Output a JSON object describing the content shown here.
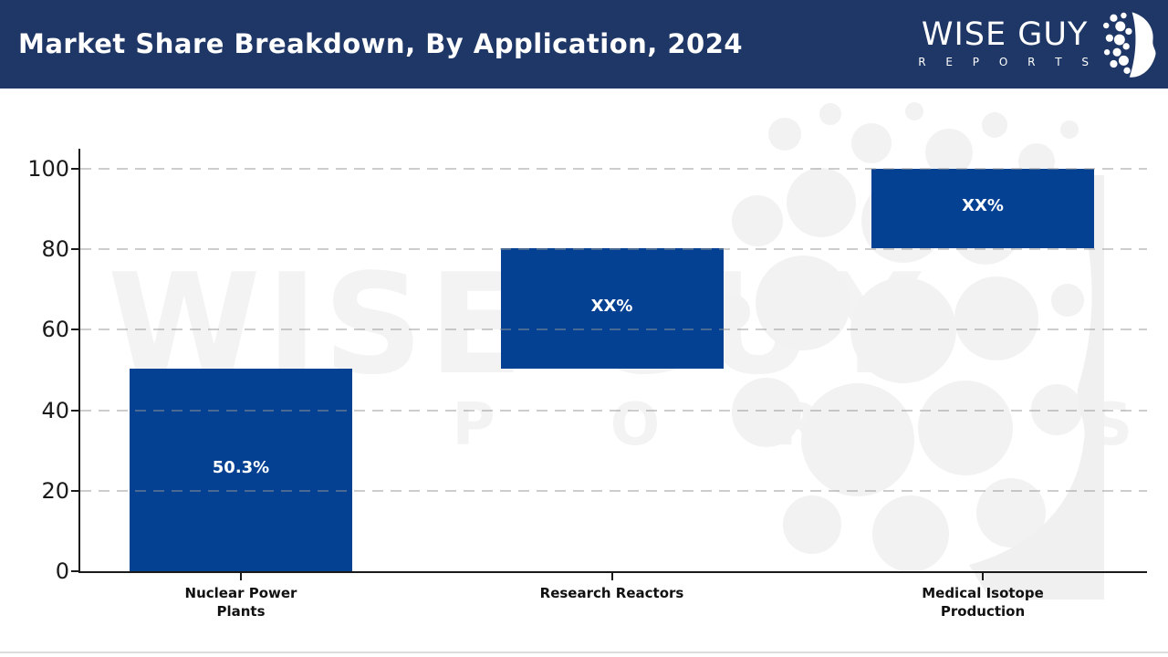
{
  "colors": {
    "header_bg": "#1f3766",
    "bar": "#054193",
    "bar_label": "#ffffff",
    "axis": "#1a1a1a",
    "gridline": "#c9c9c9",
    "watermark": "#f3f3f3",
    "title_text": "#ffffff",
    "footer_line": "#dcdcdc"
  },
  "header": {
    "title": "Market Share Breakdown, By Application, 2024"
  },
  "logo": {
    "wordmark": "WISE GUY",
    "subtitle": "R E P O R T S",
    "head_icon": "dotted-head-profile"
  },
  "watermark": {
    "line1": "WISE GUY",
    "line2": "R E P O R T S",
    "head_icon": "dotted-head-profile"
  },
  "chart_data": {
    "type": "bar",
    "subtype": "floating-segment-waterfall",
    "title": "Market Share Breakdown, By Application, 2024",
    "xlabel": "",
    "ylabel": "",
    "categories": [
      "Nuclear Power\nPlants",
      "Research Reactors",
      "Medical Isotope\nProduction"
    ],
    "bars": [
      {
        "category": "Nuclear Power Plants",
        "base": 0,
        "top": 50.3,
        "label": "50.3%"
      },
      {
        "category": "Research Reactors",
        "base": 50.3,
        "top": 80.3,
        "label": "XX%"
      },
      {
        "category": "Medical Isotope Production",
        "base": 80.3,
        "top": 100,
        "label": "XX%"
      }
    ],
    "ylim": [
      0,
      100
    ],
    "yticks": [
      0,
      20,
      40,
      60,
      80,
      100
    ],
    "grid": "horizontal-dashed",
    "legend_position": "none"
  }
}
